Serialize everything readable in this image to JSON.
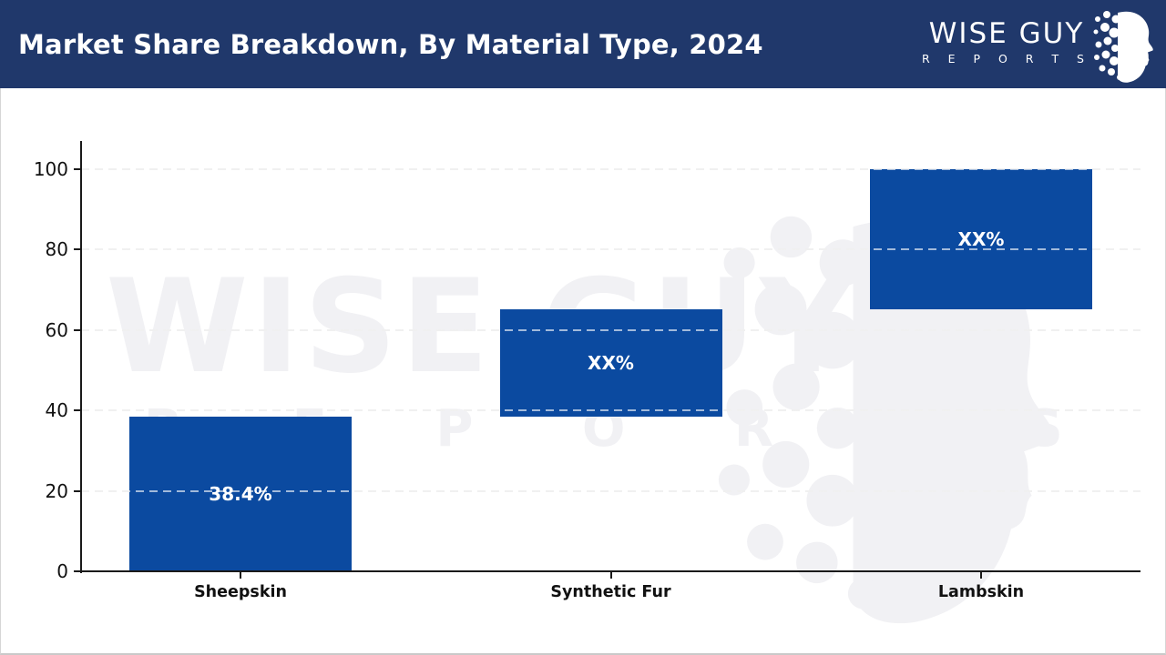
{
  "header": {
    "title": "Market Share Breakdown, By Material Type, 2024",
    "bg_color": "#20386b",
    "logo": {
      "line1": "WISE GUY",
      "line2": "R E P O R T S",
      "icon": "dotted-face-profile"
    }
  },
  "watermark": {
    "line1": "WISE GUY",
    "line2": "R E P O R T S",
    "icon": "dotted-face-profile",
    "color": "#f1f1f4"
  },
  "chart_data": {
    "type": "bar",
    "subtype": "waterfall",
    "title": "Market Share Breakdown, By Material Type, 2024",
    "categories": [
      "Sheepskin",
      "Synthetic Fur",
      "Lambskin"
    ],
    "segments": [
      {
        "category": "Sheepskin",
        "start": 0,
        "end": 38.4,
        "value_label": "38.4%"
      },
      {
        "category": "Synthetic Fur",
        "start": 38.4,
        "end": 65.2,
        "value_label": "XX%"
      },
      {
        "category": "Lambskin",
        "start": 65.2,
        "end": 100,
        "value_label": "XX%"
      }
    ],
    "yticks": [
      0,
      20,
      40,
      60,
      80,
      100
    ],
    "ylim": [
      0,
      107
    ],
    "xlabel": "",
    "ylabel": "",
    "grid": "dashed-horizontal-gridlines",
    "legend_position": "none",
    "bar_color": "#0b4aa0",
    "bar_label_color": "#ffffff",
    "axis_color": "#1a1a1a",
    "gridline_color": "#d9d9d9"
  }
}
